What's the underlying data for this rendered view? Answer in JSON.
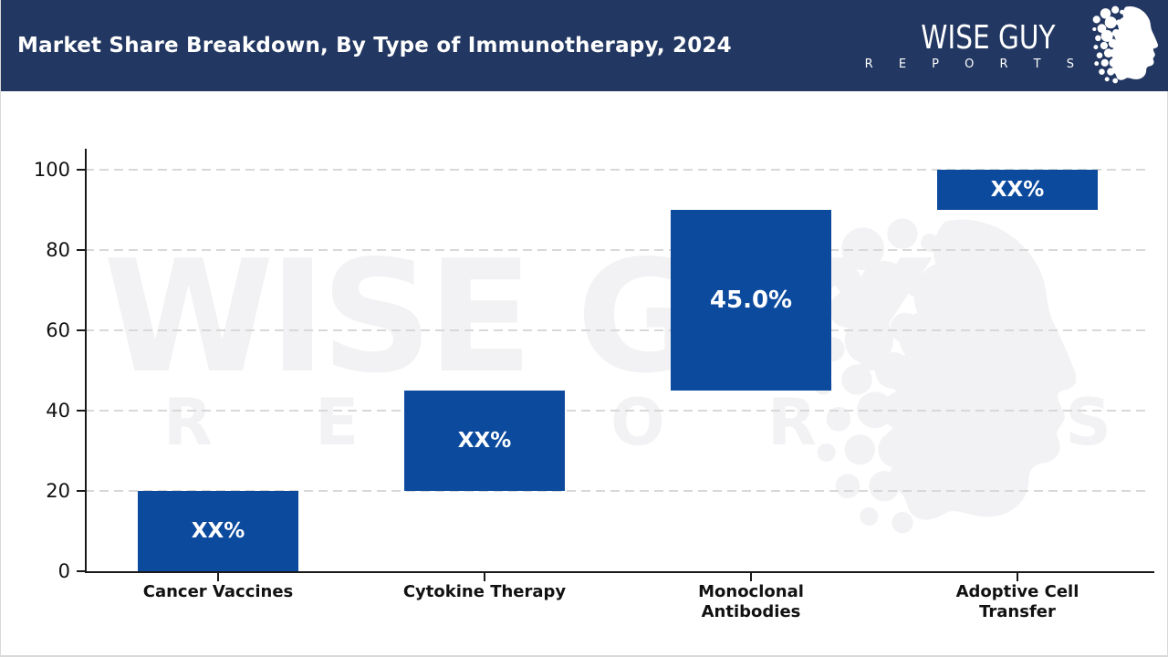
{
  "header": {
    "title": "Market Share Breakdown, By Type of Immunotherapy, 2024",
    "logo": {
      "primary": "WISE GUY",
      "secondary": "R E P O R T S"
    }
  },
  "watermark": {
    "primary": "WISE GUY",
    "secondary": "R E P O R T S"
  },
  "colors": {
    "header_bg": "#223761",
    "bar": "#0c4a9e",
    "watermark": "#f2f2f4",
    "grid": "#d8d8d8",
    "axis": "#1a1a1a",
    "title_text": "#ffffff"
  },
  "chart_data": {
    "type": "bar",
    "subtype": "waterfall-floating-bars",
    "title": "Market Share Breakdown, By Type of Immunotherapy, 2024",
    "xlabel": "",
    "ylabel": "",
    "ylim": [
      0,
      100
    ],
    "yticks": [
      0,
      20,
      40,
      60,
      80,
      100
    ],
    "grid": "horizontal-dashed",
    "legend": "none",
    "categories": [
      "Cancer Vaccines",
      "Cytokine Therapy",
      "Monoclonal Antibodies",
      "Adoptive Cell Transfer"
    ],
    "bars": [
      {
        "category": "Cancer Vaccines",
        "category_lines": [
          "Cancer Vaccines"
        ],
        "start": 0,
        "end": 20,
        "label": "XX%",
        "emphasis": false
      },
      {
        "category": "Cytokine Therapy",
        "category_lines": [
          "Cytokine Therapy"
        ],
        "start": 20,
        "end": 45,
        "label": "XX%",
        "emphasis": false
      },
      {
        "category": "Monoclonal Antibodies",
        "category_lines": [
          "Monoclonal",
          "Antibodies"
        ],
        "start": 45,
        "end": 90,
        "label": "45.0%",
        "emphasis": true
      },
      {
        "category": "Adoptive Cell Transfer",
        "category_lines": [
          "Adoptive Cell",
          "Transfer"
        ],
        "start": 90,
        "end": 100,
        "label": "XX%",
        "emphasis": false
      }
    ]
  }
}
